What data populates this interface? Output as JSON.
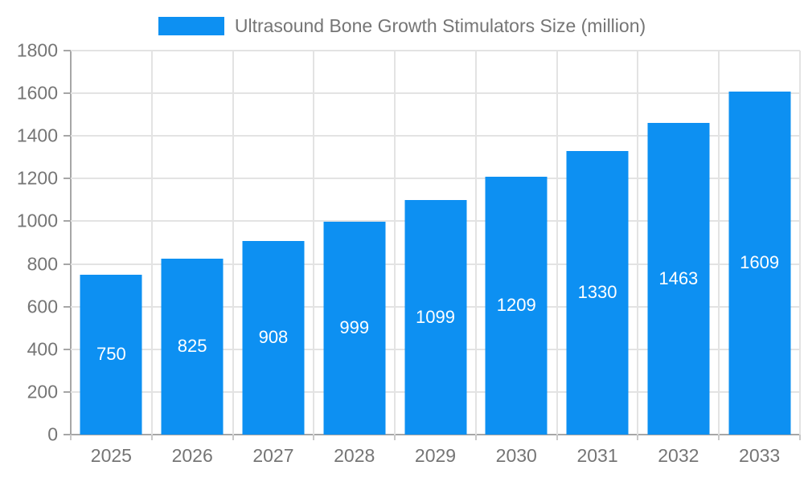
{
  "legend": {
    "label": "Ultrasound Bone Growth Stimulators Size (million)",
    "swatch_color": "#0d90f2"
  },
  "chart_data": {
    "type": "bar",
    "title": "Ultrasound Bone Growth Stimulators Size (million)",
    "categories": [
      "2025",
      "2026",
      "2027",
      "2028",
      "2029",
      "2030",
      "2031",
      "2032",
      "2033"
    ],
    "values": [
      750,
      825,
      908,
      999,
      1099,
      1209,
      1330,
      1463,
      1609
    ],
    "xlabel": "",
    "ylabel": "",
    "ylim": [
      0,
      1800
    ],
    "yticks": [
      0,
      200,
      400,
      600,
      800,
      1000,
      1200,
      1400,
      1600,
      1800
    ],
    "grid": true,
    "legend_position": "top-center",
    "value_labels": "inside-center"
  },
  "colors": {
    "bar": "#0d90f2",
    "grid": "#e3e3e3",
    "axis": "#a6a6a6",
    "tick_text": "#757575",
    "value_label": "#ffffff",
    "background": "#ffffff"
  }
}
